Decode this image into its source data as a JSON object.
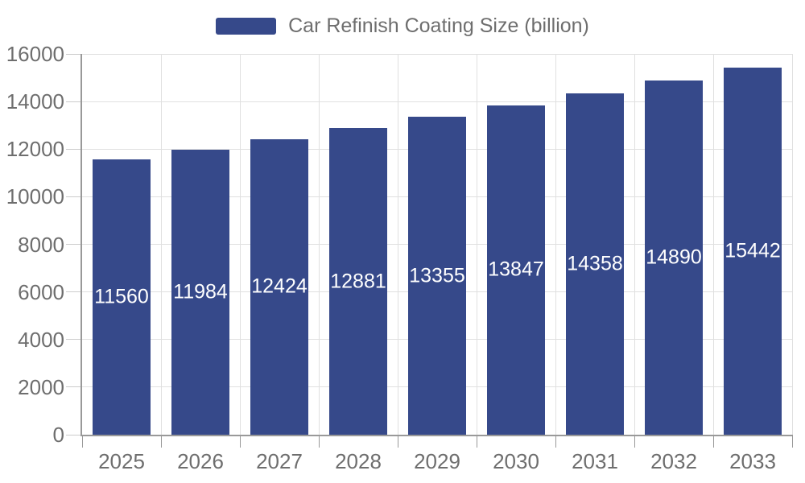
{
  "chart_data": {
    "type": "bar",
    "title": "Car Refinish Coating Size (billion)",
    "legend": [
      "Car Refinish Coating Size (billion)"
    ],
    "legend_position": "top-center",
    "categories": [
      "2025",
      "2026",
      "2027",
      "2028",
      "2029",
      "2030",
      "2031",
      "2032",
      "2033"
    ],
    "series": [
      {
        "name": "Car Refinish Coating Size (billion)",
        "values": [
          11560,
          11984,
          12424,
          12881,
          13355,
          13847,
          14358,
          14890,
          15442
        ]
      }
    ],
    "xlabel": "",
    "ylabel": "",
    "ylim": [
      0,
      16000
    ],
    "yticks": [
      0,
      2000,
      4000,
      6000,
      8000,
      10000,
      12000,
      14000,
      16000
    ],
    "grid": true,
    "bar_labels_visible": true,
    "bar_label_position": "inside-center",
    "colors": {
      "bar": "#36498A",
      "bar_label": "#FFFFFF",
      "axis_text": "#6E6E6E",
      "legend_text": "#6E6E6E",
      "axis_line": "#999999",
      "grid_line": "#E0E0E0",
      "tick_line": "#CCCCCC",
      "background": "#FFFFFF"
    }
  }
}
